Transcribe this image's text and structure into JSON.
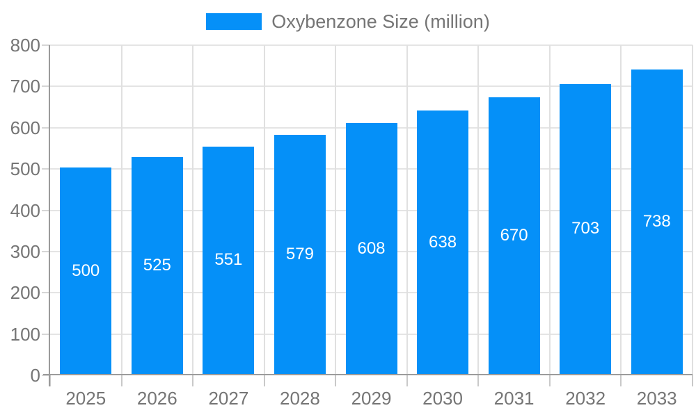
{
  "legend": {
    "label": "Oxybenzone Size (million)"
  },
  "chart_data": {
    "type": "bar",
    "title": "",
    "categories": [
      "2025",
      "2026",
      "2027",
      "2028",
      "2029",
      "2030",
      "2031",
      "2032",
      "2033"
    ],
    "series": [
      {
        "name": "Oxybenzone Size (million)",
        "values": [
          500,
          525,
          551,
          579,
          608,
          638,
          670,
          703,
          738
        ]
      }
    ],
    "xlabel": "",
    "ylabel": "",
    "ylim": [
      0,
      800
    ],
    "yticks": [
      0,
      100,
      200,
      300,
      400,
      500,
      600,
      700,
      800
    ],
    "grid": true,
    "legend_position": "top-center",
    "bar_labels_visible": true
  },
  "colors": {
    "bar": "#0590f8",
    "bar_label": "#ffffff",
    "axis_text": "#757575",
    "legend_text": "#757575",
    "grid_line_h": "#e4e4e4",
    "grid_line_v": "#e0e0e0",
    "axis_line": "#9b9b9b",
    "tick": "#cccccc",
    "background": "#ffffff"
  }
}
